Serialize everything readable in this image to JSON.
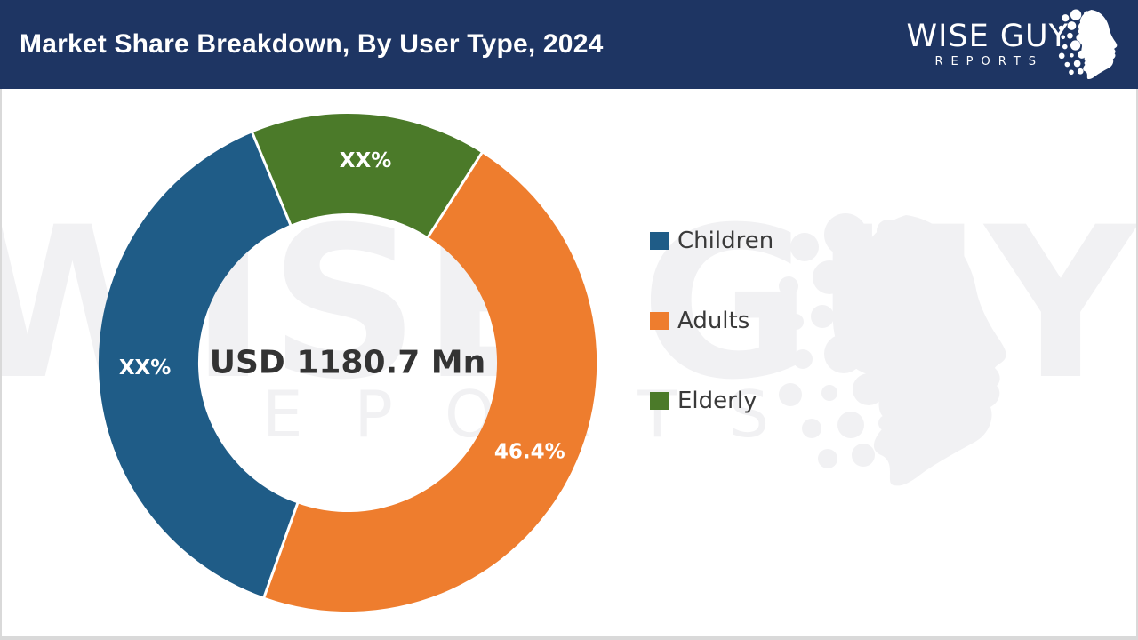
{
  "header": {
    "title": "Market Share Breakdown, By User Type, 2024",
    "background_color": "#1e3563",
    "logo": {
      "brand_line1": "WISE GUY",
      "brand_line2": "REPORTS"
    }
  },
  "watermark": {
    "line1": "WISE GUY",
    "line2": "REPORTS"
  },
  "chart_data": {
    "type": "donut",
    "title": "Market Share Breakdown, By User Type, 2024",
    "center_label": "USD 1180.7 Mn",
    "legend_position": "right",
    "segments": [
      {
        "name": "Children",
        "label": "XX%",
        "color": "#1f5c87",
        "start_angle": 199.6,
        "end_angle": 337.5,
        "approx_pct": 38.3
      },
      {
        "name": "Adults",
        "label": "46.4%",
        "color": "#ee7d2e",
        "start_angle": 32.6,
        "end_angle": 199.6,
        "approx_pct": 46.4
      },
      {
        "name": "Elderly",
        "label": "XX%",
        "color": "#4b7a29",
        "start_angle": 337.5,
        "end_angle": 392.6,
        "approx_pct": 15.3
      }
    ]
  }
}
